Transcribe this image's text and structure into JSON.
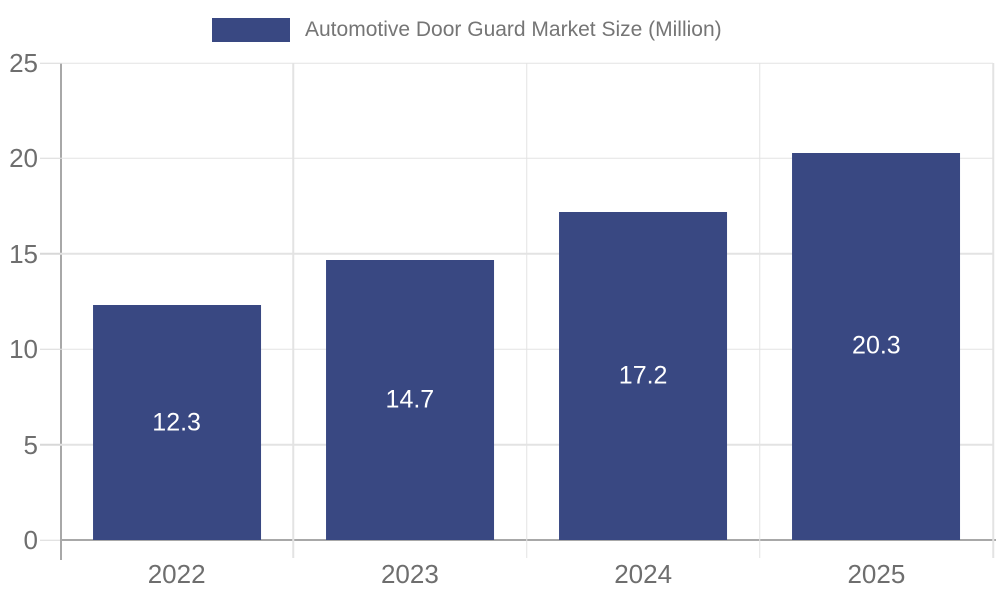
{
  "legend": {
    "label": "Automotive Door Guard Market Size (Million)"
  },
  "chart_data": {
    "type": "bar",
    "title": "Automotive Door Guard Market Size (Million)",
    "categories": [
      "2022",
      "2023",
      "2024",
      "2025"
    ],
    "values": [
      12.3,
      14.7,
      17.2,
      20.3
    ],
    "value_labels": [
      "12.3",
      "14.7",
      "17.2",
      "20.3"
    ],
    "xlabel": "",
    "ylabel": "",
    "ylim": [
      0,
      25
    ],
    "yticks": [
      0,
      5,
      10,
      15,
      20,
      25
    ],
    "grid": true,
    "legend_position": "top",
    "colors": {
      "bar": "#394882",
      "value_label": "#ffffff",
      "grid": "#e3e3e3",
      "tick": "#d8d8d8",
      "axis_line": "#a8a8a8",
      "axis_text": "#6e6e6e",
      "legend_text": "#757575",
      "background": "#ffffff"
    }
  }
}
